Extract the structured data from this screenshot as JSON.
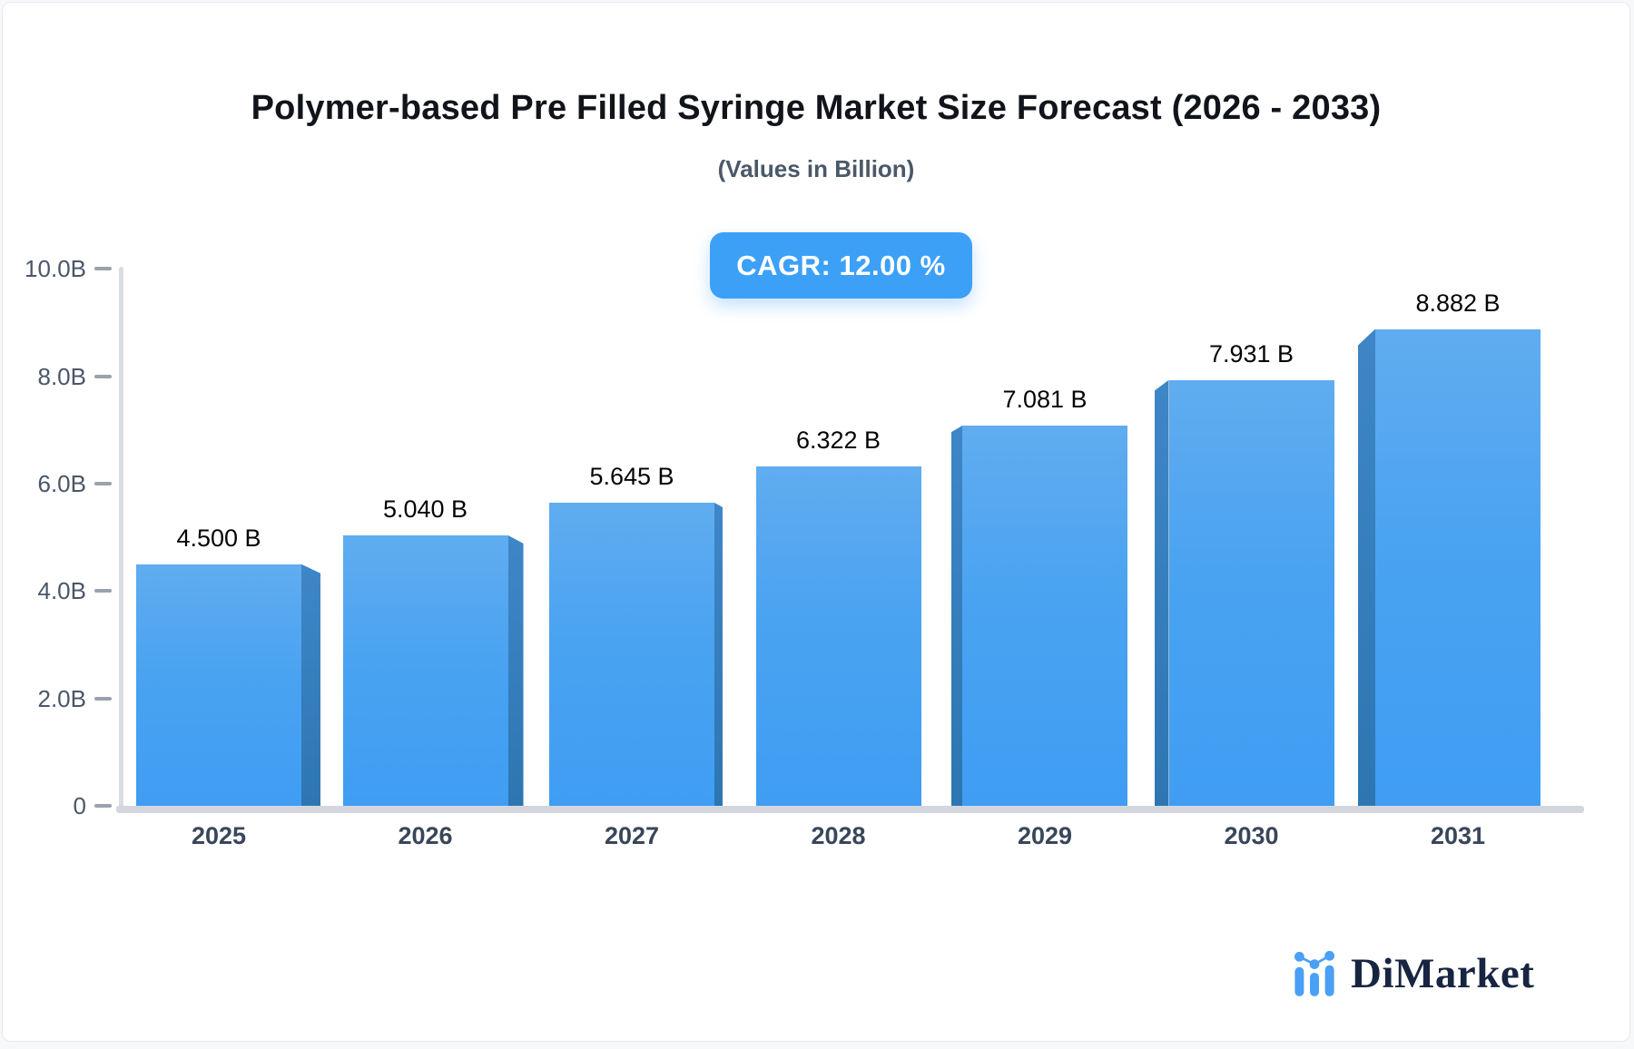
{
  "header": {
    "title": "Polymer-based Pre Filled Syringe Market Size Forecast (2026 - 2033)",
    "subtitle": "(Values in Billion)",
    "cagr_label": "CAGR: 12.00 %"
  },
  "chart_data": {
    "type": "bar",
    "title": "Polymer-based Pre Filled Syringe Market Size Forecast (2026 - 2033)",
    "subtitle": "(Values in Billion)",
    "unit": "Billion",
    "cagr_percent": 12.0,
    "categories": [
      "2025",
      "2026",
      "2027",
      "2028",
      "2029",
      "2030",
      "2031"
    ],
    "values": [
      4.5,
      5.04,
      5.645,
      6.322,
      7.081,
      7.931,
      8.882
    ],
    "value_labels": [
      "4.500 B",
      "5.040 B",
      "5.645 B",
      "6.322 B",
      "7.081 B",
      "7.931 B",
      "8.882 B"
    ],
    "ylim": [
      0,
      10
    ],
    "yticks": [
      {
        "value": 0,
        "label": "0"
      },
      {
        "value": 2,
        "label": "2.0B"
      },
      {
        "value": 4,
        "label": "4.0B"
      },
      {
        "value": 6,
        "label": "6.0B"
      },
      {
        "value": 8,
        "label": "8.0B"
      },
      {
        "value": 10,
        "label": "10.0B"
      }
    ],
    "grid": false,
    "legend": "none",
    "bar_style": "3d-perspective",
    "colors": {
      "bar_face_top": "#60acf0",
      "bar_face_bottom": "#3f9df3",
      "bar_side": "#2d76b2",
      "axis": "#d3d7dd",
      "tick_text": "#4a5668",
      "value_text": "#050505",
      "badge_bg": "#3da0f7",
      "badge_text": "#ffffff"
    }
  },
  "branding": {
    "logo_text": "DiMarket",
    "logo_icon": "mini-bar-chart-trend-icon",
    "logo_text_color": "#172541",
    "logo_icon_color": "#4aa0f5"
  }
}
